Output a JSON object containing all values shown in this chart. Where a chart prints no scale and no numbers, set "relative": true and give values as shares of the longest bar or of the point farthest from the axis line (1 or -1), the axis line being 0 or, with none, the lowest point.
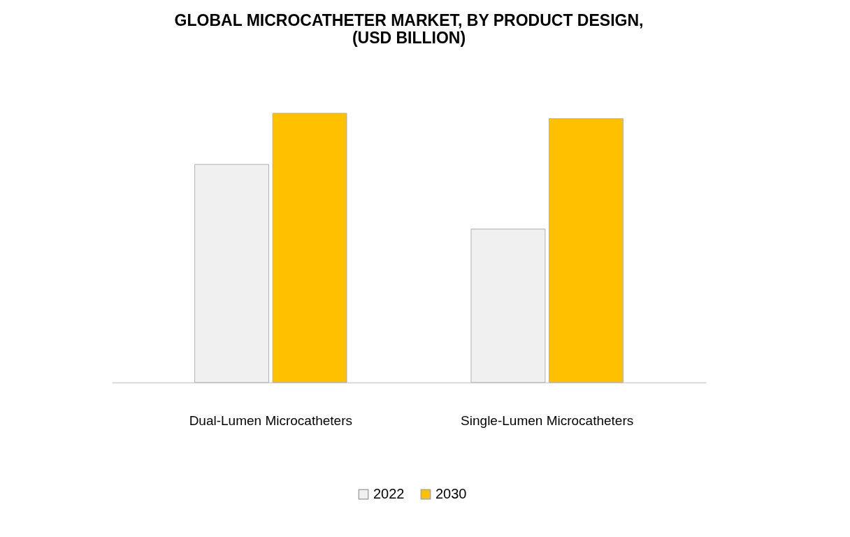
{
  "chart_data": {
    "type": "bar",
    "title": "GLOBAL MICROCATHETER MARKET, BY PRODUCT DESIGN,\n(USD BILLION)",
    "categories": [
      "Dual-Lumen Microcatheters",
      "Single-Lumen Microcatheters"
    ],
    "series": [
      {
        "name": "2022",
        "color": "#f0f0f0",
        "values": [
          0.81,
          0.57
        ]
      },
      {
        "name": "2030",
        "color": "#ffc000",
        "values": [
          1,
          0.98
        ]
      }
    ],
    "relative": true,
    "legend": "bottom"
  }
}
